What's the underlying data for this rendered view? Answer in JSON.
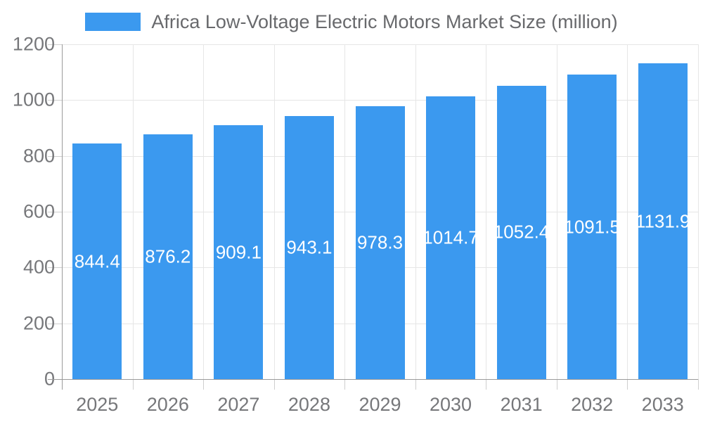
{
  "legend": {
    "label": "Africa Low-Voltage Electric Motors Market Size (million)",
    "swatch": "legend-color-swatch"
  },
  "chart_data": {
    "type": "bar",
    "title": "Africa Low-Voltage Electric Motors Market Size (million)",
    "categories": [
      "2025",
      "2026",
      "2027",
      "2028",
      "2029",
      "2030",
      "2031",
      "2032",
      "2033"
    ],
    "values": [
      844.4,
      876.2,
      909.1,
      943.1,
      978.3,
      1014.7,
      1052.4,
      1091.5,
      1131.9
    ],
    "data_labels": [
      "844.4",
      "876.2",
      "909.1",
      "943.1",
      "978.3",
      "1014.7",
      "1052.4",
      "1091.5",
      "1131.9"
    ],
    "xlabel": "",
    "ylabel": "",
    "ylim": [
      0,
      1200
    ],
    "yticks": [
      0,
      200,
      400,
      600,
      800,
      1000,
      1200
    ],
    "grid": true,
    "legend_position": "top",
    "value_labels_inside_bars": true
  },
  "colors": {
    "bar": "#3b99ef",
    "grid": "#e6e6e6",
    "axis": "#9b9b9b",
    "tick": "#cfcfcf",
    "axis_label": "#76777a",
    "legend_text": "#68696c",
    "value_label": "#ffffff",
    "background": "#ffffff"
  }
}
